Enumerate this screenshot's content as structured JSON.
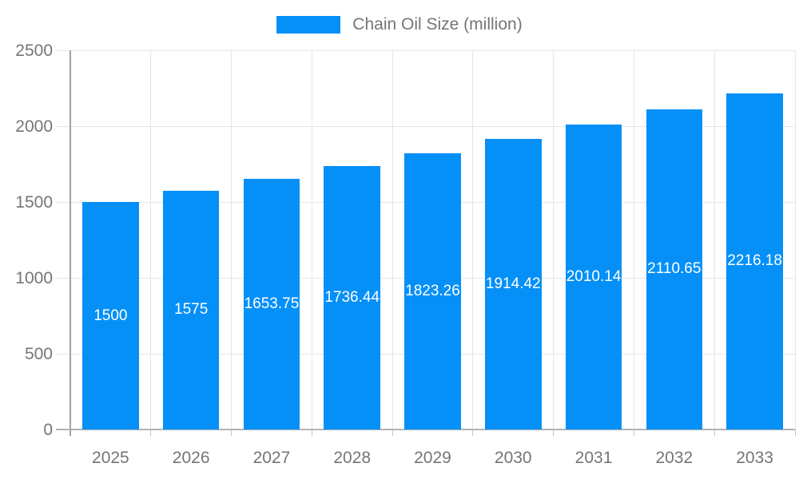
{
  "legend": {
    "label": "Chain Oil Size (million)"
  },
  "colors": {
    "bar": "#0590f8",
    "axis_text": "#757575",
    "bar_label_text": "#ffffff",
    "gridline": "#e6e6e6",
    "axis_line": "#a3a3a3"
  },
  "chart_data": {
    "type": "bar",
    "title": "Chain Oil Size (million)",
    "categories": [
      "2025",
      "2026",
      "2027",
      "2028",
      "2029",
      "2030",
      "2031",
      "2032",
      "2033"
    ],
    "values": [
      1500,
      1575,
      1653.75,
      1736.44,
      1823.26,
      1914.42,
      2010.14,
      2110.65,
      2216.18
    ],
    "series_name": "Chain Oil Size (million)",
    "xlabel": "",
    "ylabel": "",
    "ylim": [
      0,
      2500
    ],
    "yticks": [
      0,
      500,
      1000,
      1500,
      2000,
      2500
    ],
    "grid": true,
    "legend_position": "top",
    "bar_labels_visible": true,
    "bar_label_position": "center"
  }
}
